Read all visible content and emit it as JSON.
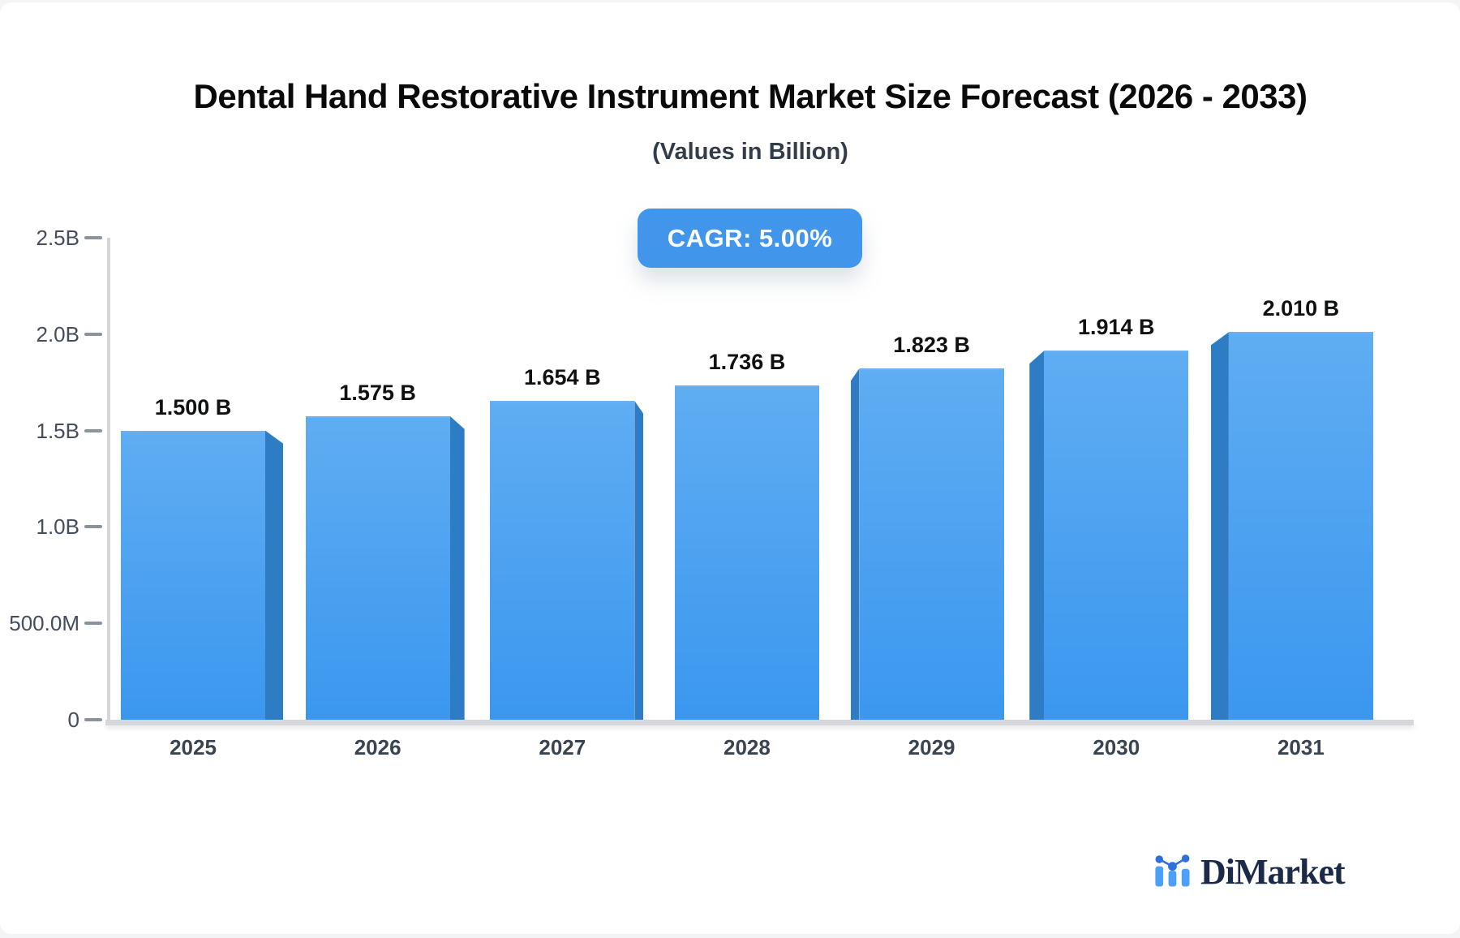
{
  "header": {
    "title": "Dental Hand Restorative Instrument Market Size Forecast (2026 - 2033)",
    "subtitle": "(Values in Billion)"
  },
  "badge": {
    "label": "CAGR: 5.00%"
  },
  "chart_data": {
    "type": "bar",
    "title": "Dental Hand Restorative Instrument Market Size Forecast (2026 - 2033)",
    "subtitle": "(Values in Billion)",
    "categories": [
      "2025",
      "2026",
      "2027",
      "2028",
      "2029",
      "2030",
      "2031"
    ],
    "values": [
      1.5,
      1.575,
      1.654,
      1.736,
      1.823,
      1.914,
      2.01
    ],
    "bar_labels": [
      "1.500 B",
      "1.575 B",
      "1.654 B",
      "1.736 B",
      "1.823 B",
      "1.914 B",
      "2.010 B"
    ],
    "xlabel": "",
    "ylabel": "",
    "ylim": [
      0,
      2.5
    ],
    "grid": false,
    "legend": "none",
    "y_ticks": [
      {
        "value": 0,
        "label": "0"
      },
      {
        "value": 0.5,
        "label": "500.0M"
      },
      {
        "value": 1.0,
        "label": "1.0B"
      },
      {
        "value": 1.5,
        "label": "1.5B"
      },
      {
        "value": 2.0,
        "label": "2.0B"
      },
      {
        "value": 2.5,
        "label": "2.5B"
      }
    ]
  },
  "colors": {
    "accent_blue": "#4196ec",
    "bar_top": "#5fadf2",
    "bar_bottom": "#3b97ef",
    "bar_side": "#2e7dc4",
    "axis_line": "#d4d6da",
    "baseline_gray": "#d5d7db",
    "logo_navy": "#1c2a49",
    "logo_bar_blue": "#4aa1f7",
    "logo_dot_blue": "#2f6fdd"
  },
  "logo": {
    "text": "DiMarket",
    "icon": "dimarket-bar-chart-logo-icon"
  }
}
